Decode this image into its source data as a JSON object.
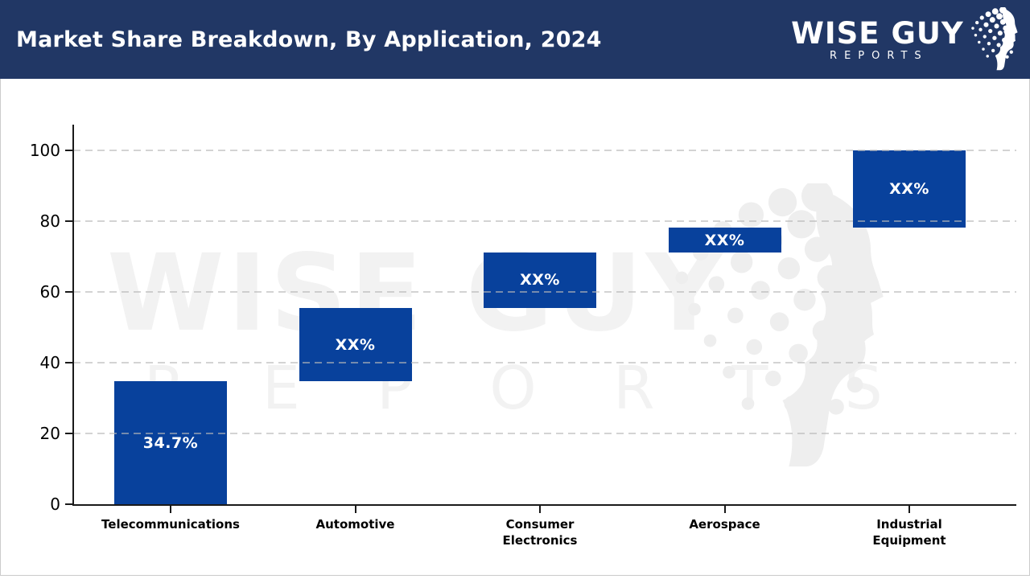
{
  "header": {
    "title": "Market Share Breakdown, By Application, 2024",
    "logo": {
      "line1": "WISE GUY",
      "line2": "REPORTS"
    }
  },
  "watermark": {
    "line1": "WISE GUY",
    "line2": "R E P O R T S"
  },
  "chart_data": {
    "type": "bar",
    "subtype": "waterfall",
    "title": "Market Share Breakdown, By Application, 2024",
    "categories": [
      "Telecommunications",
      "Automotive",
      "Consumer\nElectronics",
      "Aerospace",
      "Industrial\nEquipment"
    ],
    "series": [
      {
        "category": "Telecommunications",
        "start": 0,
        "end": 34.7,
        "label": "34.7%"
      },
      {
        "category": "Automotive",
        "start": 34.7,
        "end": 55.4,
        "label": "XX%"
      },
      {
        "category": "Consumer Electronics",
        "start": 55.4,
        "end": 71.2,
        "label": "XX%"
      },
      {
        "category": "Aerospace",
        "start": 71.2,
        "end": 78.1,
        "label": "XX%"
      },
      {
        "category": "Industrial Equipment",
        "start": 78.1,
        "end": 100,
        "label": "XX%"
      }
    ],
    "xlabel": "",
    "ylabel": "",
    "ylim": [
      0,
      105
    ],
    "yticks": [
      0,
      20,
      40,
      60,
      80,
      100
    ],
    "grid": "horizontal-dashed",
    "legend": "none",
    "bar_color": "#08419c"
  },
  "colors": {
    "header_bg": "#213765",
    "bar": "#08419c",
    "grid": "#d9d9d9",
    "axis": "#1a1a1a",
    "watermark": "#f2f2f2"
  }
}
